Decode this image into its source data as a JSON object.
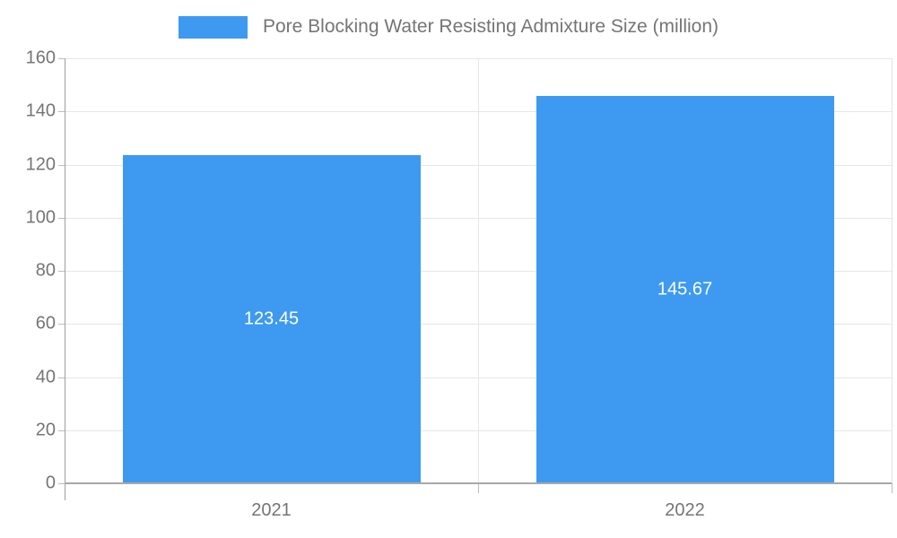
{
  "chart_data": {
    "type": "bar",
    "title": "",
    "legend": {
      "label": "Pore Blocking Water Resisting Admixture Size (million)",
      "position": "top-center"
    },
    "categories": [
      "2021",
      "2022"
    ],
    "values": [
      123.45,
      145.67
    ],
    "value_labels": [
      "123.45",
      "145.67"
    ],
    "xlabel": "",
    "ylabel": "",
    "ylim": [
      0,
      160
    ],
    "ytick_step": 20,
    "ytick_labels": [
      "0",
      "20",
      "40",
      "60",
      "80",
      "100",
      "120",
      "140",
      "160"
    ],
    "grid": true,
    "colors": {
      "bar": "#3d9af0",
      "value_label_text": "#ffffff",
      "axis_text": "#757575",
      "gridline": "#e6e6e6",
      "axis_line": "#9e9e9e",
      "tick": "#bdbdbd",
      "background": "#ffffff"
    }
  }
}
